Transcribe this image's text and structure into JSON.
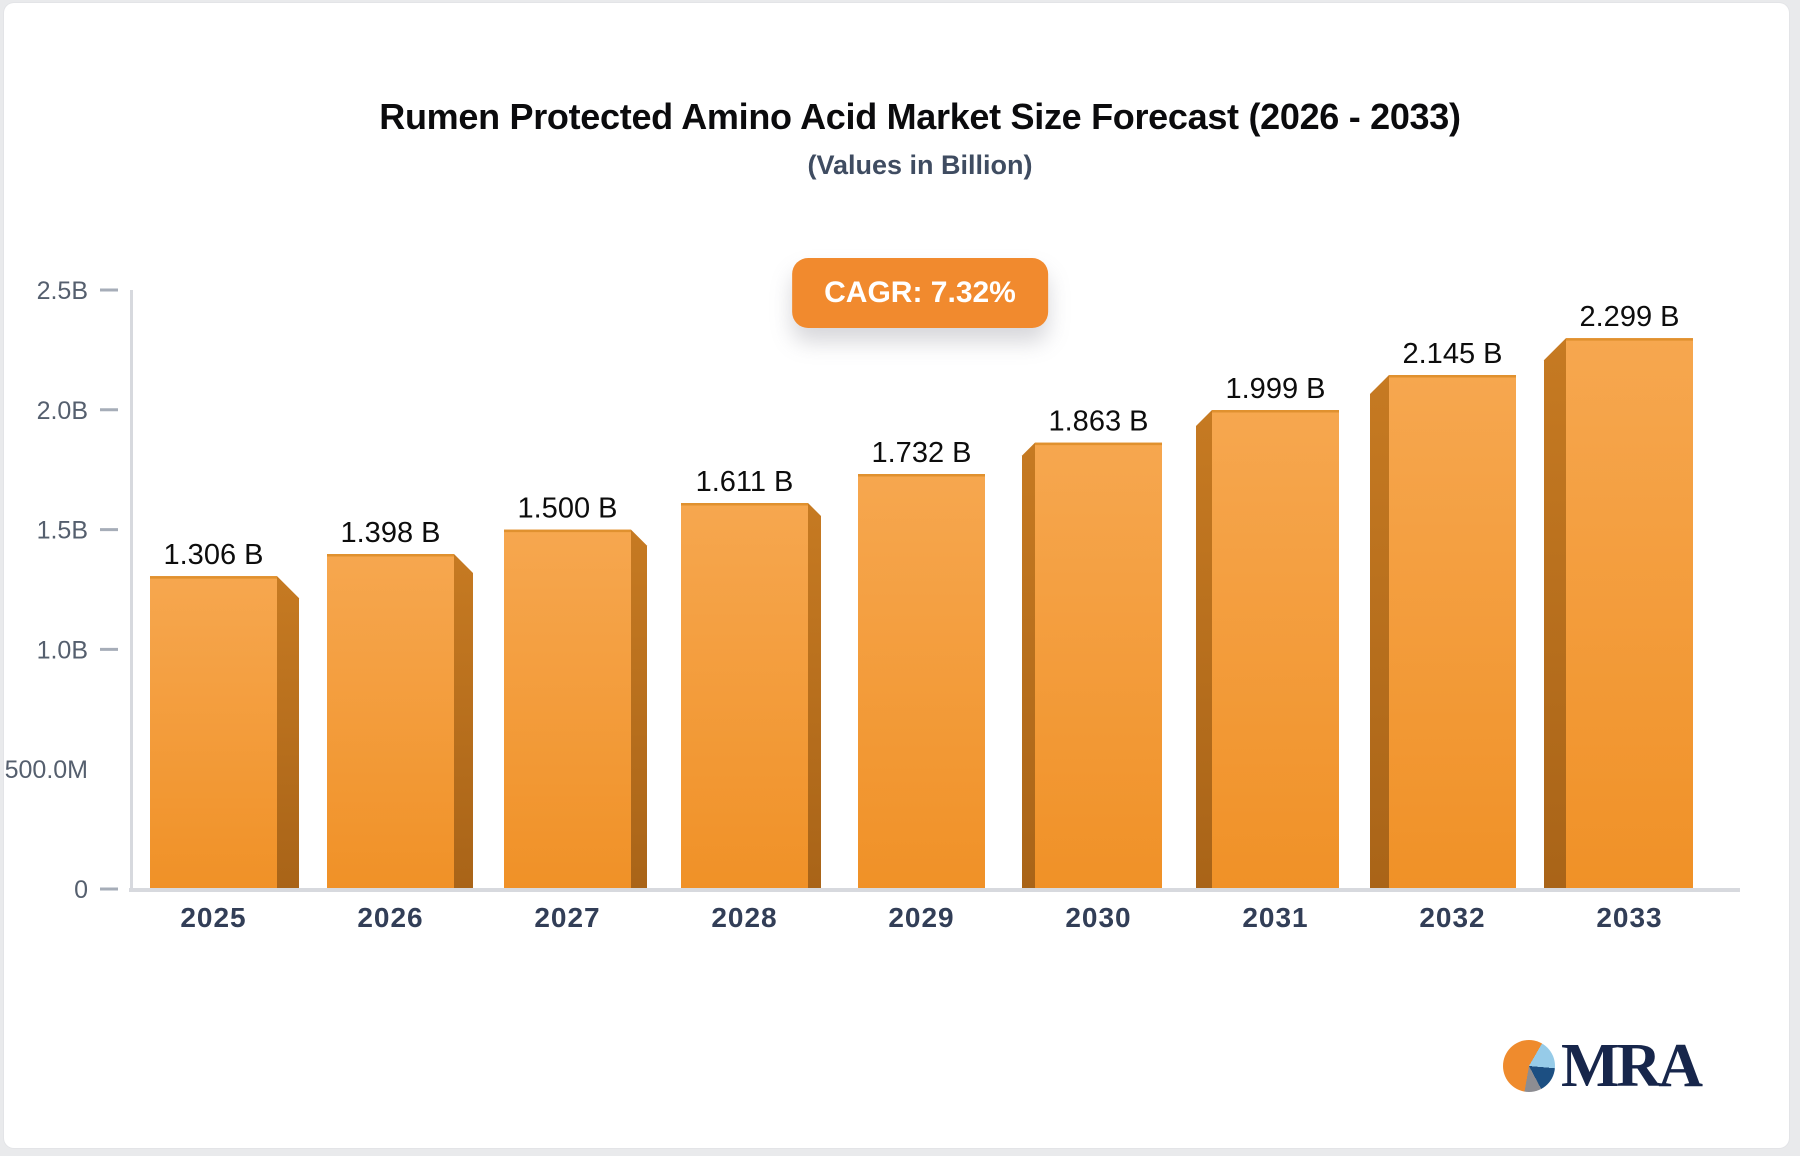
{
  "page": {
    "background_color": "#e9eaec",
    "card_color": "#ffffff"
  },
  "chart_data": {
    "type": "bar",
    "title": "Rumen Protected Amino Acid Market Size Forecast (2026 - 2033)",
    "subtitle": "(Values in Billion)",
    "cagr_label": "CAGR: 7.32%",
    "cagr_value_percent": 7.32,
    "categories": [
      "2025",
      "2026",
      "2027",
      "2028",
      "2029",
      "2030",
      "2031",
      "2032",
      "2033"
    ],
    "values": [
      1.306,
      1.398,
      1.5,
      1.611,
      1.732,
      1.863,
      1.999,
      2.145,
      2.299
    ],
    "value_labels": [
      "1.306 B",
      "1.398 B",
      "1.500 B",
      "1.611 B",
      "1.732 B",
      "1.863 B",
      "1.999 B",
      "2.145 B",
      "2.299 B"
    ],
    "xlabel": "",
    "ylabel": "",
    "ylim": [
      0,
      2.5
    ],
    "yticks": [
      {
        "label": "2.5B",
        "value": 2.5,
        "has_tick_mark": true
      },
      {
        "label": "2.0B",
        "value": 2.0,
        "has_tick_mark": true
      },
      {
        "label": "1.5B",
        "value": 1.5,
        "has_tick_mark": true
      },
      {
        "label": "1.0B",
        "value": 1.0,
        "has_tick_mark": true
      },
      {
        "label": "500.0M",
        "value": 0.5,
        "has_tick_mark": false
      },
      {
        "label": "0",
        "value": 0.0,
        "has_tick_mark": true
      }
    ],
    "grid": false,
    "legend": null,
    "bar_style": {
      "perspective": "center-vanishing-3d",
      "front_top_color": "#f6a74f",
      "front_bottom_color": "#f09127",
      "top_edge_color": "#e0912f",
      "side_top_color": "#c67a22",
      "side_bottom_color": "#a96418"
    },
    "colors": {
      "badge_background": "#f18a2e",
      "axis_line": "#d7d9de",
      "tick_mark": "#a6adb8",
      "value_label": "#0d0d0d",
      "category_label": "#323e57",
      "ytick_label": "#555f6e",
      "title": "#0b0b0d",
      "subtitle": "#3f4c61"
    }
  },
  "logo": {
    "text": "MRA",
    "text_color": "#17264b",
    "pie_colors": {
      "orange": "#ef8b2d",
      "light_blue": "#96cbe8",
      "dark_blue": "#1c4f82",
      "gray": "#8d8d92"
    }
  }
}
